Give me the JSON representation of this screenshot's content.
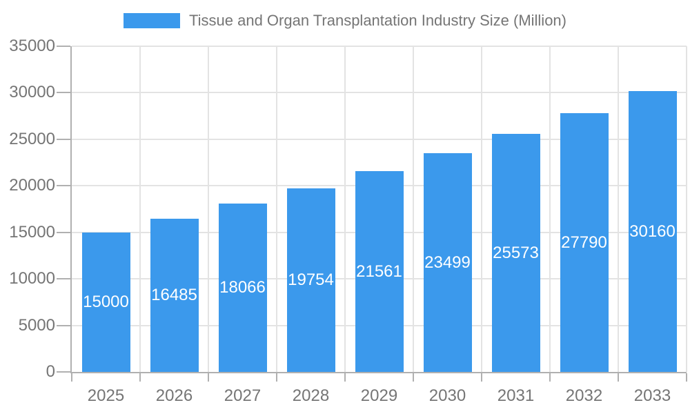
{
  "chart_data": {
    "type": "bar",
    "title": "Tissue and Organ Transplantation Industry Size (Million)",
    "categories": [
      "2025",
      "2026",
      "2027",
      "2028",
      "2029",
      "2030",
      "2031",
      "2032",
      "2033"
    ],
    "values": [
      15000,
      16485,
      18066,
      19754,
      21561,
      23499,
      25573,
      27790,
      30160
    ],
    "bar_labels": [
      "15000",
      "16485",
      "18066",
      "19754",
      "21561",
      "23499",
      "25573",
      "27790",
      "30160"
    ],
    "series_name": "Tissue and Organ Transplantation Industry Size (Million)",
    "xlabel": "",
    "ylabel": "",
    "ylim": [
      0,
      35000
    ],
    "y_ticks": [
      0,
      5000,
      10000,
      15000,
      20000,
      25000,
      30000,
      35000
    ],
    "grid": true,
    "legend_position": "top",
    "colors": {
      "bar": "#3b99ec",
      "grid": "#e3e3e3",
      "axis": "#b0b0b0",
      "label": "#757575",
      "bar_label": "#ffffff",
      "background": "#ffffff"
    }
  }
}
